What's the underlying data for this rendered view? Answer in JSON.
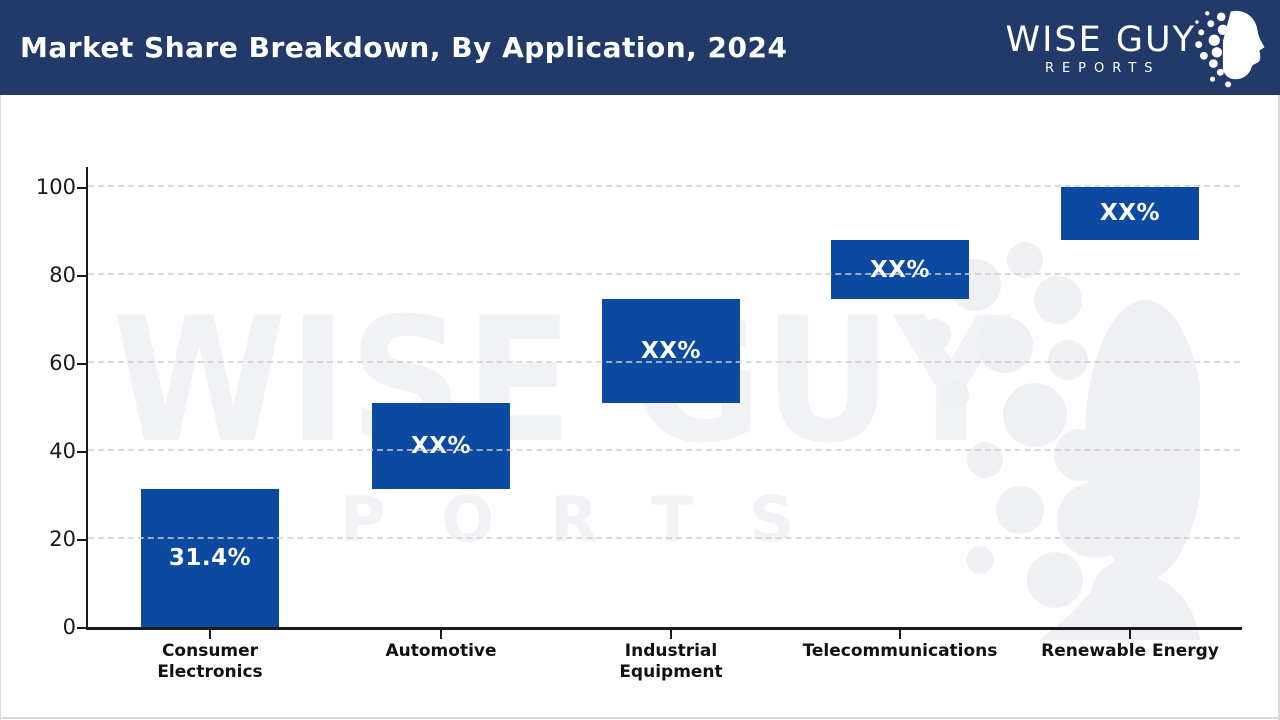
{
  "header": {
    "title": "Market Share Breakdown, By Application, 2024",
    "logo": {
      "line1": "WISE GUY",
      "line2": "REPORTS"
    }
  },
  "watermark": {
    "line1": "WISE GUY",
    "line2": "REPORTS"
  },
  "colors": {
    "header_bg": "#213a69",
    "bar": "#0b4aa0",
    "bar_label": "#ffffff",
    "gridline": "#cdcdcd",
    "axis": "#1a1a1a",
    "watermark": "#f1f2f5"
  },
  "chart_data": {
    "type": "bar",
    "subtype": "waterfall",
    "title": "Market Share Breakdown, By Application, 2024",
    "xlabel": "",
    "ylabel": "",
    "categories": [
      "Consumer Electronics",
      "Automotive",
      "Industrial Equipment",
      "Telecommunications",
      "Renewable Energy"
    ],
    "categories_display": [
      [
        "Consumer",
        "Electronics"
      ],
      [
        "Automotive"
      ],
      [
        "Industrial",
        "Equipment"
      ],
      [
        "Telecommunications"
      ],
      [
        "Renewable Energy"
      ]
    ],
    "segments": [
      {
        "category": "Consumer Electronics",
        "start": 0,
        "end": 31.4,
        "label": "31.4%"
      },
      {
        "category": "Automotive",
        "start": 31.4,
        "end": 51.0,
        "label": "XX%"
      },
      {
        "category": "Industrial Equipment",
        "start": 51.0,
        "end": 74.5,
        "label": "XX%"
      },
      {
        "category": "Telecommunications",
        "start": 74.5,
        "end": 88.0,
        "label": "XX%"
      },
      {
        "category": "Renewable Energy",
        "start": 88.0,
        "end": 100.0,
        "label": "XX%"
      }
    ],
    "yticks": [
      0,
      20,
      40,
      60,
      80,
      100
    ],
    "ylim": [
      0,
      104
    ],
    "grid": "horizontal-dashed",
    "legend": "none"
  }
}
